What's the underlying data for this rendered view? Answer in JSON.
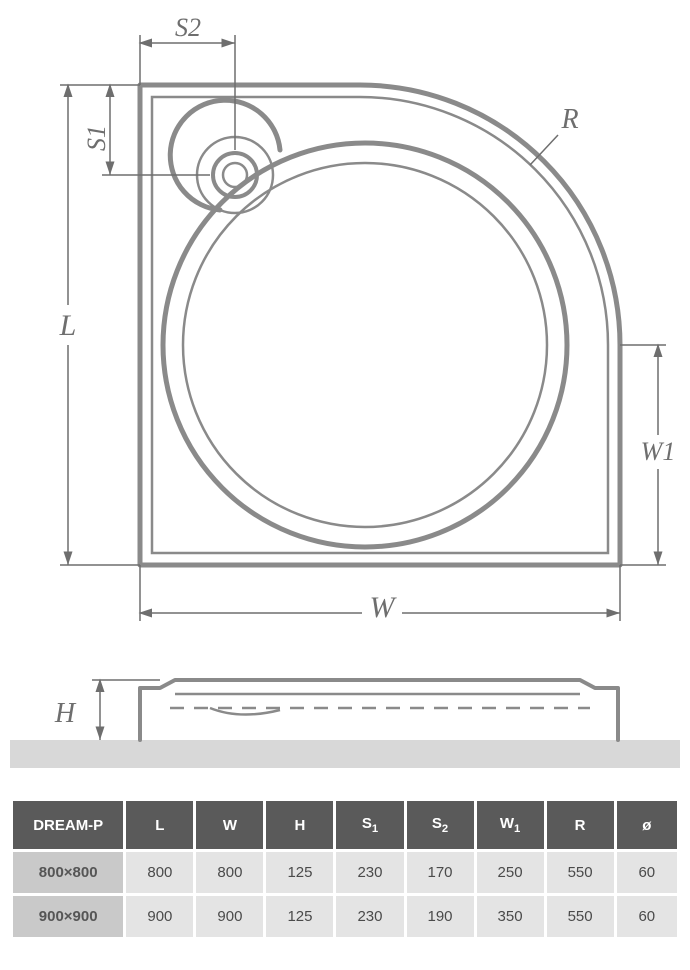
{
  "diagram": {
    "top_view": {
      "labels": {
        "L": "L",
        "W": "W",
        "W1": "W1",
        "S1": "S1",
        "S2": "S2",
        "R": "R"
      },
      "stroke_color": "#8a8a8a",
      "dim_color": "#6e6e6e",
      "stroke_width_main": 5,
      "stroke_width_thin": 2.5,
      "label_fontsize": 28
    },
    "side_view": {
      "labels": {
        "H": "H"
      },
      "ground_color": "#d8d8d8",
      "label_fontsize": 28
    },
    "background_color": "#ffffff"
  },
  "table": {
    "header_bg": "#5a5a5a",
    "header_fg": "#ffffff",
    "rowhead_bg": "#c9c9c9",
    "cell_bg": "#e4e4e4",
    "cell_fg": "#4a4a4a",
    "columns": [
      "DREAM-P",
      "L",
      "W",
      "H",
      "S1",
      "S2",
      "W1",
      "R",
      "ø"
    ],
    "column_widths_pct": [
      17,
      10.5,
      10.5,
      10.5,
      10.5,
      10.5,
      10.5,
      10.5,
      9.5
    ],
    "rows": [
      [
        "800×800",
        "800",
        "800",
        "125",
        "230",
        "170",
        "250",
        "550",
        "60"
      ],
      [
        "900×900",
        "900",
        "900",
        "125",
        "230",
        "190",
        "350",
        "550",
        "60"
      ]
    ]
  }
}
